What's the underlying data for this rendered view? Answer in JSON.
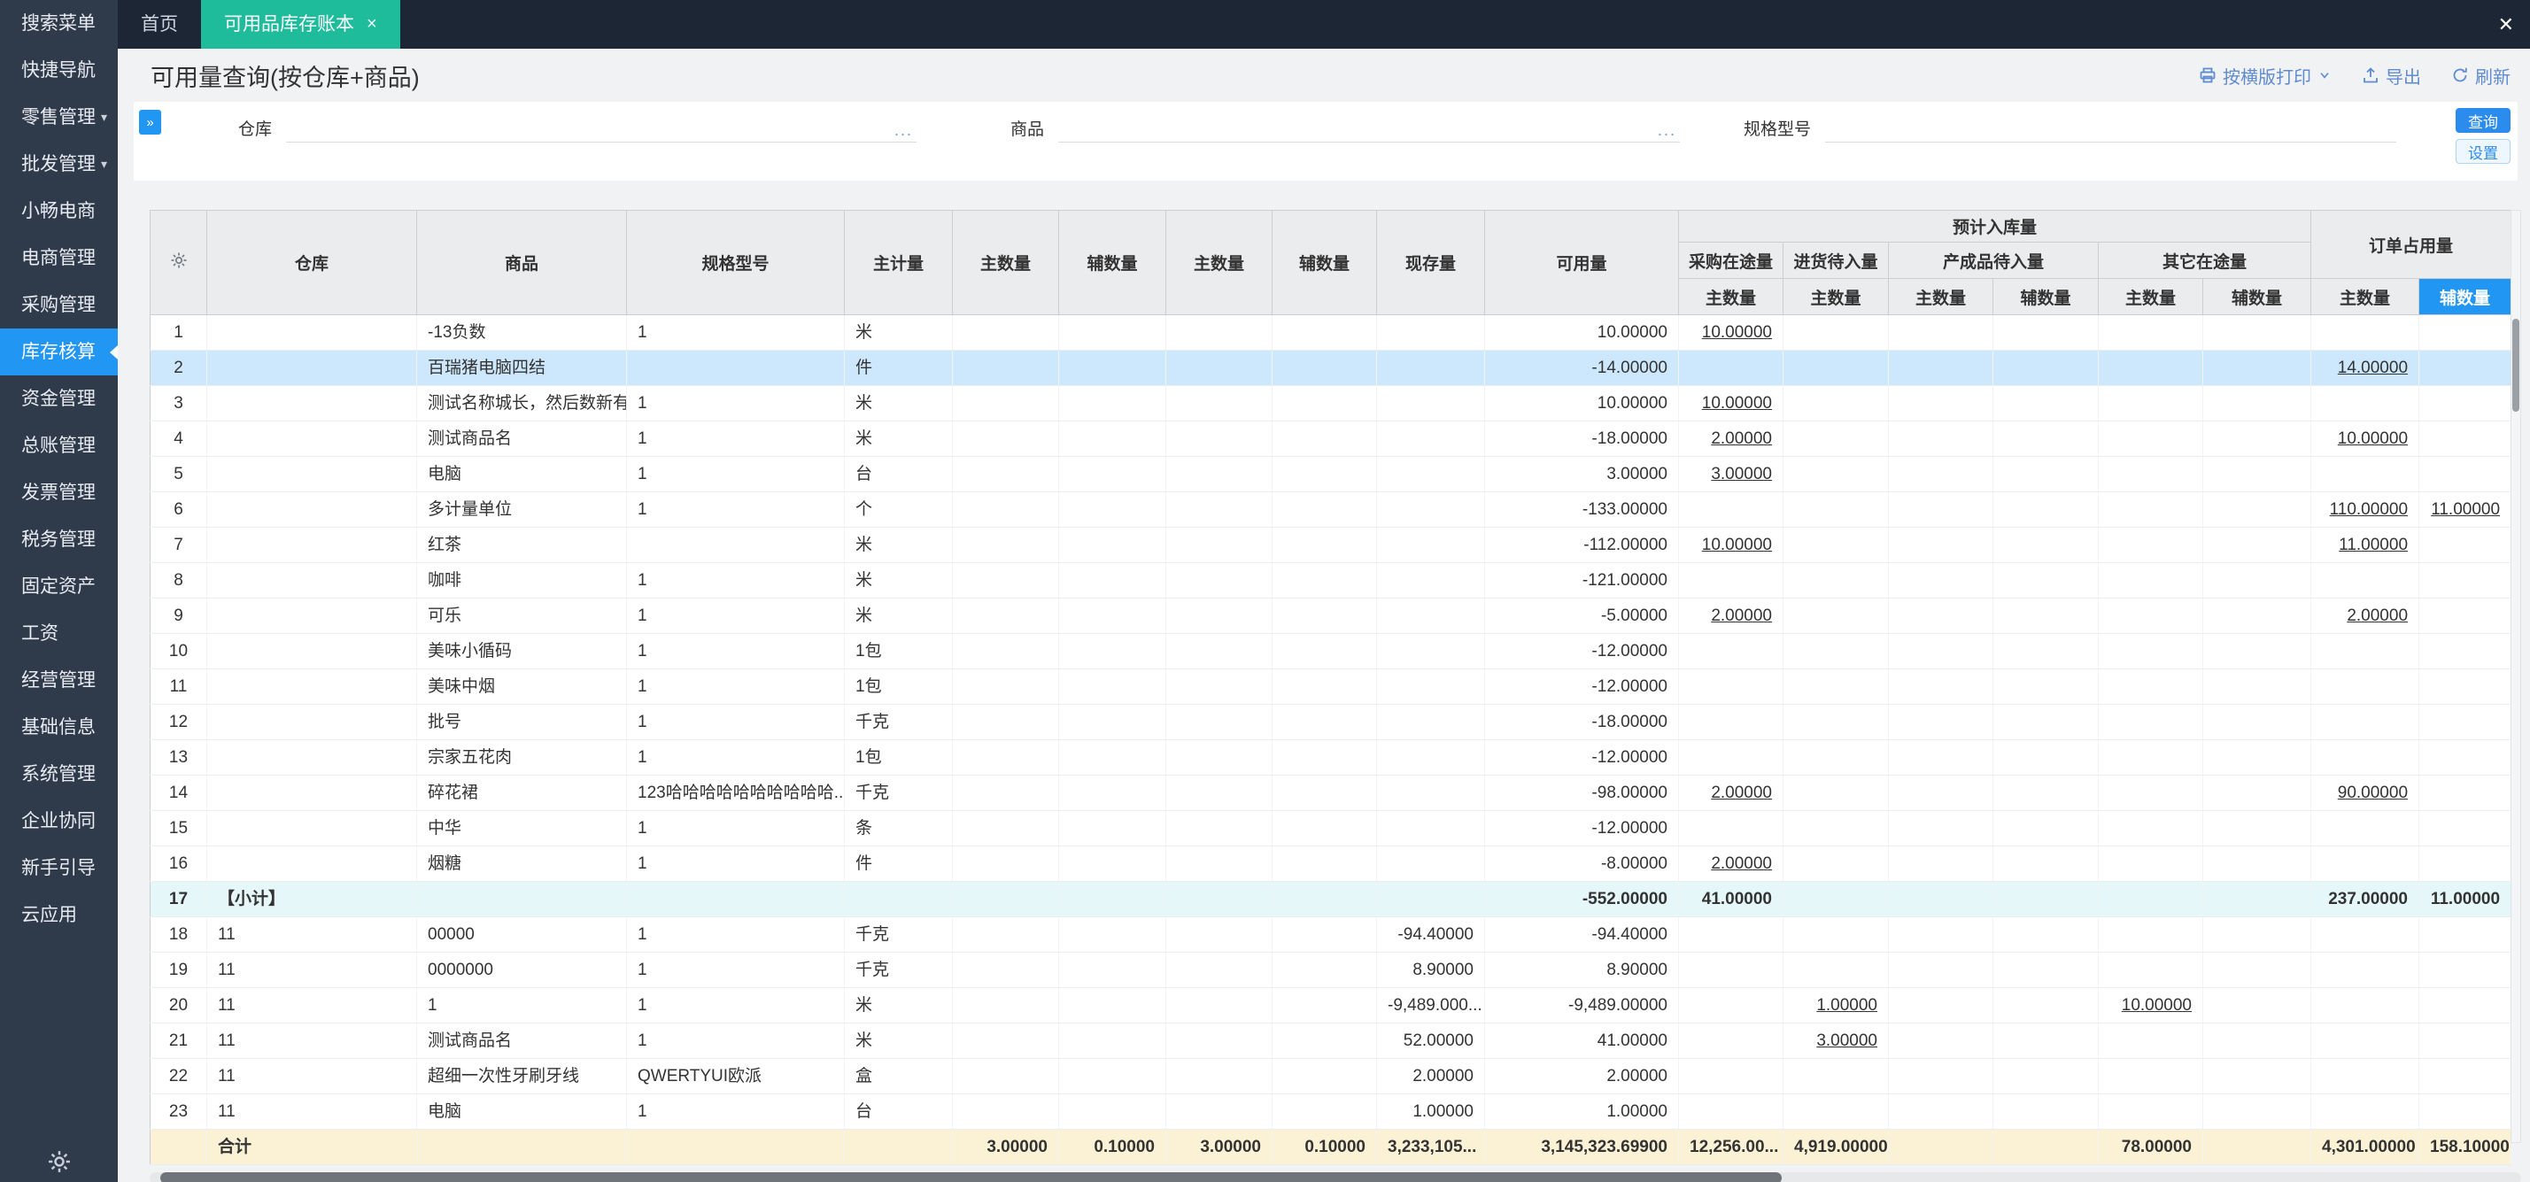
{
  "colors": {
    "accent": "#2196f3",
    "tab_active": "#1fbc9c",
    "negative": "#f5222d",
    "sidebar_bg": "#2f3a4a",
    "tabbar_bg": "#1d2634"
  },
  "sidebar": {
    "items": [
      {
        "id": "search-menu",
        "label": "搜索菜单"
      },
      {
        "id": "quick-nav",
        "label": "快捷导航"
      },
      {
        "id": "retail-mgmt",
        "label": "零售管理",
        "arrow": true
      },
      {
        "id": "wholesale-mgmt",
        "label": "批发管理",
        "arrow": true
      },
      {
        "id": "xiaochang-ecom",
        "label": "小畅电商"
      },
      {
        "id": "ecom-mgmt",
        "label": "电商管理"
      },
      {
        "id": "purchase-mgmt",
        "label": "采购管理"
      },
      {
        "id": "inventory-accounting",
        "label": "库存核算",
        "active": true
      },
      {
        "id": "funds-mgmt",
        "label": "资金管理"
      },
      {
        "id": "general-ledger",
        "label": "总账管理"
      },
      {
        "id": "invoice-mgmt",
        "label": "发票管理"
      },
      {
        "id": "tax-mgmt",
        "label": "税务管理"
      },
      {
        "id": "fixed-assets",
        "label": "固定资产"
      },
      {
        "id": "payroll",
        "label": "工资"
      },
      {
        "id": "business-mgmt",
        "label": "经营管理"
      },
      {
        "id": "basic-info",
        "label": "基础信息"
      },
      {
        "id": "system-mgmt",
        "label": "系统管理"
      },
      {
        "id": "enterprise-collab",
        "label": "企业协同"
      },
      {
        "id": "beginner-guide",
        "label": "新手引导"
      },
      {
        "id": "cloud-apps",
        "label": "云应用"
      }
    ]
  },
  "tabbar": {
    "home_tab": "首页",
    "active_tab": "可用品库存账本",
    "tab_close_icon": "×",
    "window_close_icon": "✕"
  },
  "page": {
    "title": "可用量查询(按仓库+商品)",
    "toolbar": {
      "print_label": "按横版打印",
      "export_label": "导出",
      "refresh_label": "刷新"
    }
  },
  "filters": {
    "collapse_icon": "»",
    "warehouse_label": "仓库",
    "product_label": "商品",
    "spec_label": "规格型号",
    "lookup_ellipsis": "...",
    "query_label": "查询",
    "settings_label": "设置"
  },
  "table": {
    "group_header": "预计入库量",
    "order_group_header": "订单占用量",
    "left_columns": [
      "仓库",
      "商品",
      "规格型号",
      "主计量",
      "主数量",
      "辅数量",
      "主数量",
      "辅数量",
      "现存量",
      "可用量"
    ],
    "subgroups": [
      {
        "label": "采购在途量",
        "cols": [
          "主数量"
        ]
      },
      {
        "label": "进货待入量",
        "cols": [
          "主数量"
        ]
      },
      {
        "label": "产成品待入量",
        "cols": [
          "主数量",
          "辅数量"
        ]
      },
      {
        "label": "其它在途量",
        "cols": [
          "主数量",
          "辅数量"
        ]
      }
    ],
    "order_cols": [
      "主数量",
      "辅数量"
    ],
    "rows": [
      {
        "cells": [
          "1",
          "",
          {
            "t": "-13负数",
            "red": true
          },
          "1",
          "米",
          "",
          "",
          "",
          "",
          "",
          "10.00000",
          {
            "t": "10.00000",
            "link": true
          },
          "",
          "",
          "",
          "",
          "",
          "",
          ""
        ]
      },
      {
        "sel": true,
        "cells": [
          "2",
          "",
          "百瑞猪电脑四结",
          "",
          "件",
          "",
          "",
          "",
          "",
          "",
          {
            "t": "-14.00000",
            "red": true
          },
          "",
          "",
          "",
          "",
          "",
          "",
          {
            "t": "14.00000",
            "link": true
          },
          ""
        ]
      },
      {
        "cells": [
          "3",
          "",
          "测试名称城长，然后数新有没...",
          "1",
          "米",
          "",
          "",
          "",
          "",
          "",
          "10.00000",
          {
            "t": "10.00000",
            "link": true
          },
          "",
          "",
          "",
          "",
          "",
          "",
          ""
        ]
      },
      {
        "cells": [
          "4",
          "",
          "测试商品名",
          "1",
          "米",
          "",
          "",
          "",
          "",
          "",
          {
            "t": "-18.00000",
            "red": true
          },
          {
            "t": "2.00000",
            "link": true
          },
          "",
          "",
          "",
          "",
          "",
          {
            "t": "10.00000",
            "link": true
          },
          ""
        ]
      },
      {
        "cells": [
          "5",
          "",
          "电脑",
          "1",
          "台",
          "",
          "",
          "",
          "",
          "",
          "3.00000",
          {
            "t": "3.00000",
            "link": true
          },
          "",
          "",
          "",
          "",
          "",
          "",
          ""
        ]
      },
      {
        "cells": [
          "6",
          "",
          "多计量单位",
          "1",
          "个",
          "",
          "",
          "",
          "",
          "",
          {
            "t": "-133.00000",
            "red": true
          },
          "",
          "",
          "",
          "",
          "",
          "",
          {
            "t": "110.00000",
            "link": true
          },
          {
            "t": "11.00000",
            "link": true
          }
        ]
      },
      {
        "cells": [
          "7",
          "",
          "红茶",
          "",
          "米",
          "",
          "",
          "",
          "",
          "",
          {
            "t": "-112.00000",
            "red": true
          },
          {
            "t": "10.00000",
            "link": true
          },
          "",
          "",
          "",
          "",
          "",
          {
            "t": "11.00000",
            "link": true
          },
          ""
        ]
      },
      {
        "cells": [
          "8",
          "",
          "咖啡",
          "1",
          "米",
          "",
          "",
          "",
          "",
          "",
          {
            "t": "-121.00000",
            "red": true
          },
          "",
          "",
          "",
          "",
          "",
          "",
          "",
          ""
        ]
      },
      {
        "cells": [
          "9",
          "",
          "可乐",
          "1",
          "米",
          "",
          "",
          "",
          "",
          "",
          {
            "t": "-5.00000",
            "red": true
          },
          {
            "t": "2.00000",
            "link": true
          },
          "",
          "",
          "",
          "",
          "",
          {
            "t": "2.00000",
            "link": true
          },
          ""
        ]
      },
      {
        "cells": [
          "10",
          "",
          "美味小循码",
          "1",
          "1包",
          "",
          "",
          "",
          "",
          "",
          {
            "t": "-12.00000",
            "red": true
          },
          "",
          "",
          "",
          "",
          "",
          "",
          "",
          ""
        ]
      },
      {
        "cells": [
          "11",
          "",
          "美味中烟",
          "1",
          "1包",
          "",
          "",
          "",
          "",
          "",
          {
            "t": "-12.00000",
            "red": true
          },
          "",
          "",
          "",
          "",
          "",
          "",
          "",
          ""
        ]
      },
      {
        "cells": [
          "12",
          "",
          "批号",
          "1",
          "千克",
          "",
          "",
          "",
          "",
          "",
          {
            "t": "-18.00000",
            "red": true
          },
          "",
          "",
          "",
          "",
          "",
          "",
          "",
          ""
        ]
      },
      {
        "cells": [
          "13",
          "",
          "宗家五花肉",
          "1",
          "1包",
          "",
          "",
          "",
          "",
          "",
          {
            "t": "-12.00000",
            "red": true
          },
          "",
          "",
          "",
          "",
          "",
          "",
          "",
          ""
        ]
      },
      {
        "cells": [
          "14",
          "",
          "碎花裙",
          "123哈哈哈哈哈哈哈哈哈哈...",
          "千克",
          "",
          "",
          "",
          "",
          "",
          {
            "t": "-98.00000",
            "red": true
          },
          {
            "t": "2.00000",
            "link": true
          },
          "",
          "",
          "",
          "",
          "",
          {
            "t": "90.00000",
            "link": true
          },
          ""
        ]
      },
      {
        "cells": [
          "15",
          "",
          "中华",
          "1",
          "条",
          "",
          "",
          "",
          "",
          "",
          {
            "t": "-12.00000",
            "red": true
          },
          "",
          "",
          "",
          "",
          "",
          "",
          "",
          ""
        ]
      },
      {
        "cells": [
          "16",
          "",
          "烟糖",
          "1",
          "件",
          "",
          "",
          "",
          "",
          "",
          {
            "t": "-8.00000",
            "red": true
          },
          {
            "t": "2.00000",
            "link": true
          },
          "",
          "",
          "",
          "",
          "",
          "",
          ""
        ]
      },
      {
        "sub": true,
        "cells": [
          "17",
          "【小计】",
          "",
          "",
          "",
          "",
          "",
          "",
          "",
          "",
          {
            "t": "-552.00000",
            "red": true
          },
          "41.00000",
          "",
          "",
          "",
          "",
          "",
          "237.00000",
          "11.00000"
        ]
      },
      {
        "cells": [
          "18",
          "11",
          "00000",
          "1",
          "千克",
          "",
          "",
          "",
          "",
          {
            "t": "-94.40000",
            "red": true
          },
          {
            "t": "-94.40000",
            "red": true
          },
          "",
          "",
          "",
          "",
          "",
          "",
          "",
          ""
        ]
      },
      {
        "cells": [
          "19",
          "11",
          "0000000",
          "1",
          "千克",
          "",
          "",
          "",
          "",
          "8.90000",
          "8.90000",
          "",
          "",
          "",
          "",
          "",
          "",
          "",
          ""
        ]
      },
      {
        "cells": [
          "20",
          "11",
          "1",
          "1",
          "米",
          "",
          "",
          "",
          "",
          {
            "t": "-9,489.000...",
            "red": true
          },
          {
            "t": "-9,489.00000",
            "red": true
          },
          "",
          {
            "t": "1.00000",
            "link": true
          },
          "",
          "",
          {
            "t": "10.00000",
            "link": true
          },
          "",
          "",
          ""
        ]
      },
      {
        "cells": [
          "21",
          "11",
          "测试商品名",
          "1",
          "米",
          "",
          "",
          "",
          "",
          "52.00000",
          "41.00000",
          "",
          {
            "t": "3.00000",
            "link": true
          },
          "",
          "",
          "",
          "",
          "",
          ""
        ]
      },
      {
        "cells": [
          "22",
          "11",
          "超细一次性牙刷牙线",
          "QWERTYUI欧派",
          "盒",
          "",
          "",
          "",
          "",
          "2.00000",
          "2.00000",
          "",
          "",
          "",
          "",
          "",
          "",
          "",
          ""
        ]
      },
      {
        "cells": [
          "23",
          "11",
          "电脑",
          "1",
          "台",
          "",
          "",
          "",
          "",
          "1.00000",
          "1.00000",
          "",
          "",
          "",
          "",
          "",
          "",
          "",
          ""
        ]
      }
    ],
    "total_row": {
      "cells": [
        "",
        "合计",
        "",
        "",
        "",
        "3.00000",
        "0.10000",
        "3.00000",
        "0.10000",
        "3,233,105...",
        "3,145,323.69900",
        "12,256.00...",
        "4,919.00000",
        "",
        "",
        "78.00000",
        "",
        "4,301.00000",
        "158.10000"
      ]
    }
  }
}
